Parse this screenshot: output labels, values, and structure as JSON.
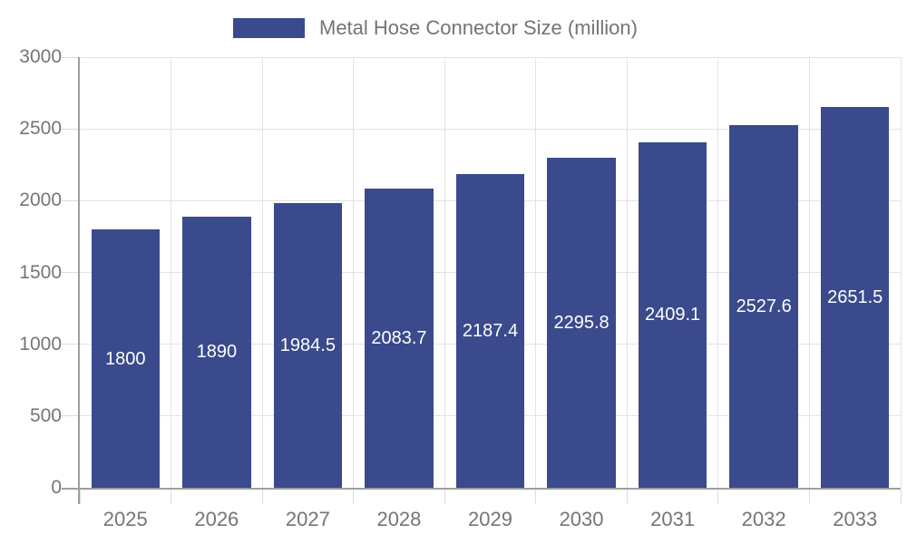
{
  "legend": {
    "label": "Metal Hose Connector Size (million)"
  },
  "colors": {
    "bar": "#3A4A8C",
    "axis_text": "#757575",
    "grid": "#E3E3E3",
    "axis_line": "#9E9E9E",
    "tick": "#DCDCDC",
    "value_text": "#FFFFFF",
    "background": "#FFFFFF"
  },
  "chart_data": {
    "type": "bar",
    "title": "Metal Hose Connector Size (million)",
    "categories": [
      "2025",
      "2026",
      "2027",
      "2028",
      "2029",
      "2030",
      "2031",
      "2032",
      "2033"
    ],
    "series": [
      {
        "name": "Metal Hose Connector Size (million)",
        "values": [
          1800,
          1890,
          1984.5,
          2083.7,
          2187.4,
          2295.8,
          2409.1,
          2527.6,
          2651.5
        ]
      }
    ],
    "value_labels": [
      "1800",
      "1890",
      "1984.5",
      "2083.7",
      "2187.4",
      "2295.8",
      "2409.1",
      "2527.6",
      "2651.5"
    ],
    "xlabel": "",
    "ylabel": "",
    "ylim": [
      0,
      3000
    ],
    "yticks": [
      0,
      500,
      1000,
      1500,
      2000,
      2500,
      3000
    ],
    "grid": true,
    "legend_position": "top-center",
    "bar_labels_position": "inside-center"
  }
}
